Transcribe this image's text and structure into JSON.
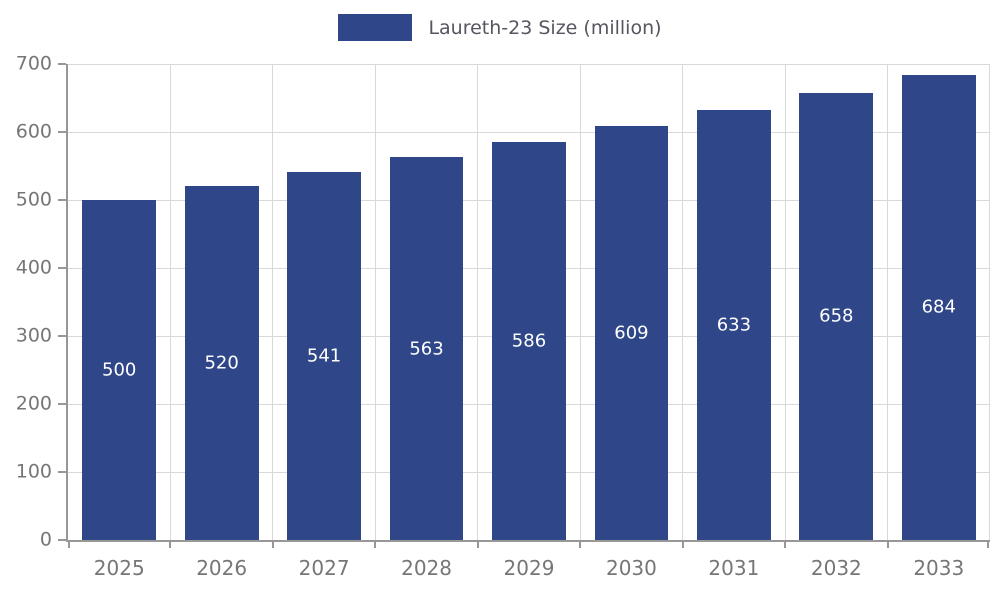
{
  "legend": {
    "label": "Laureth-23 Size (million)"
  },
  "chart_data": {
    "type": "bar",
    "title": "",
    "xlabel": "",
    "ylabel": "",
    "categories": [
      "2025",
      "2026",
      "2027",
      "2028",
      "2029",
      "2030",
      "2031",
      "2032",
      "2033"
    ],
    "series": [
      {
        "name": "Laureth-23 Size (million)",
        "values": [
          500,
          520,
          541,
          563,
          586,
          609,
          633,
          658,
          684
        ]
      }
    ],
    "ylim": [
      0,
      700
    ],
    "ytick_interval": 100,
    "yticks": [
      0,
      100,
      200,
      300,
      400,
      500,
      600,
      700
    ],
    "grid": true,
    "legend_position": "top-center",
    "bar_color": "#2F4788",
    "value_label_color": "#FFFFFF",
    "axis_text_color": "#767676"
  }
}
